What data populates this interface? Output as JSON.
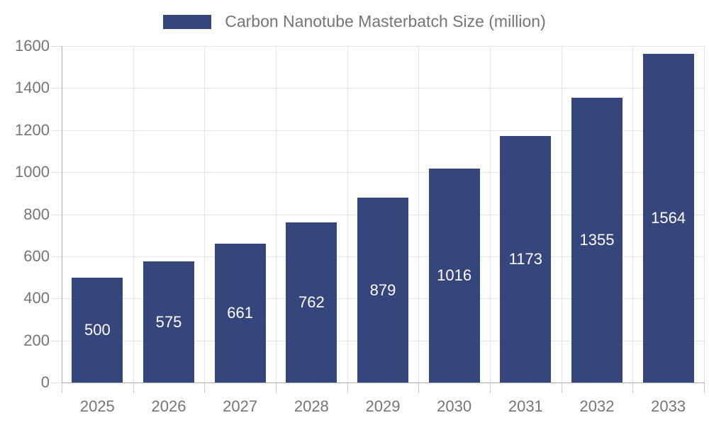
{
  "chart_data": {
    "type": "bar",
    "title": "Carbon Nanotube Masterbatch Size (million)",
    "legend_position": "top",
    "categories": [
      "2025",
      "2026",
      "2027",
      "2028",
      "2029",
      "2030",
      "2031",
      "2032",
      "2033"
    ],
    "series": [
      {
        "name": "Carbon Nanotube Masterbatch Size (million)",
        "values": [
          500,
          575,
          661,
          762,
          879,
          1016,
          1173,
          1355,
          1564
        ]
      }
    ],
    "bar_labels": [
      "500",
      "575",
      "661",
      "762",
      "879",
      "1016",
      "1173",
      "1355",
      "1564"
    ],
    "xlabel": "",
    "ylabel": "",
    "ylim": [
      0,
      1600
    ],
    "yticks": [
      0,
      200,
      400,
      600,
      800,
      1000,
      1200,
      1400,
      1600
    ],
    "grid": true,
    "colors": {
      "bar": "#35467d",
      "bar_label": "#ffffff",
      "axis_text": "#757575",
      "grid_line": "#e4e4e4",
      "axis_line": "#aaaaaa"
    }
  }
}
